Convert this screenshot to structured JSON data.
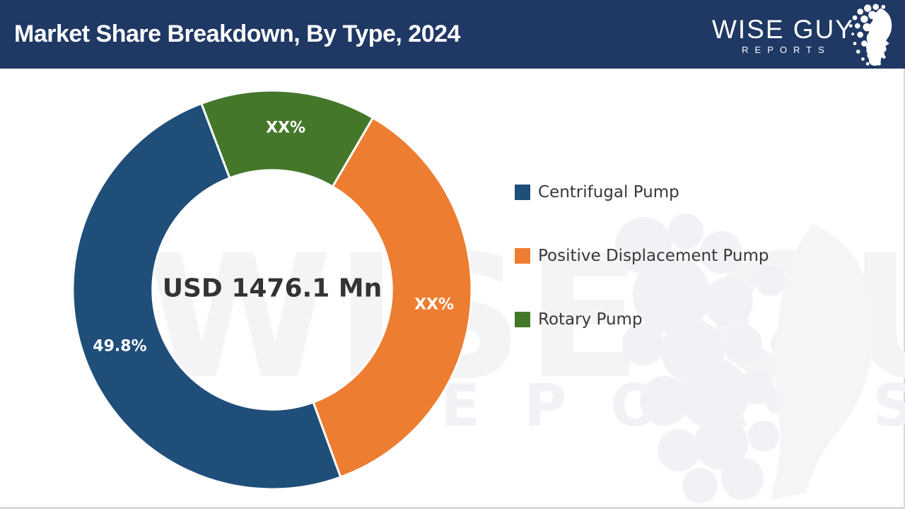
{
  "header": {
    "title": "Market Share Breakdown, By Type, 2024",
    "logo": {
      "line1": "WISE GUY",
      "line2": "REPORTS"
    }
  },
  "watermark": {
    "line1": "WISE GUY",
    "line2": "REPORTS"
  },
  "chart_data": {
    "type": "pie",
    "subtype": "donut",
    "title": "Market Share Breakdown, By Type, 2024",
    "center_label": "USD 1476.1 Mn",
    "legend_position": "right",
    "start_angle_deg": 110.8,
    "direction": "counterclockwise",
    "inner_radius_ratio": 0.6,
    "values_are_percent": true,
    "unlabeled_values_estimated_from_arc": true,
    "segments": [
      {
        "name": "Centrifugal Pump",
        "slice_label": "49.8%",
        "value_pct": 49.8,
        "color": "#1f4e79"
      },
      {
        "name": "Positive Displacement Pump",
        "slice_label": "XX%",
        "value_pct": 36.0,
        "color": "#ed7d31"
      },
      {
        "name": "Rotary Pump",
        "slice_label": "XX%",
        "value_pct": 14.2,
        "color": "#45772b"
      }
    ]
  },
  "colors": {
    "header_bg": "#1f3864",
    "content_bg": "#ffffff",
    "center_text": "#333333",
    "legend_text": "#383838",
    "slice_gap": "#ffffff"
  }
}
